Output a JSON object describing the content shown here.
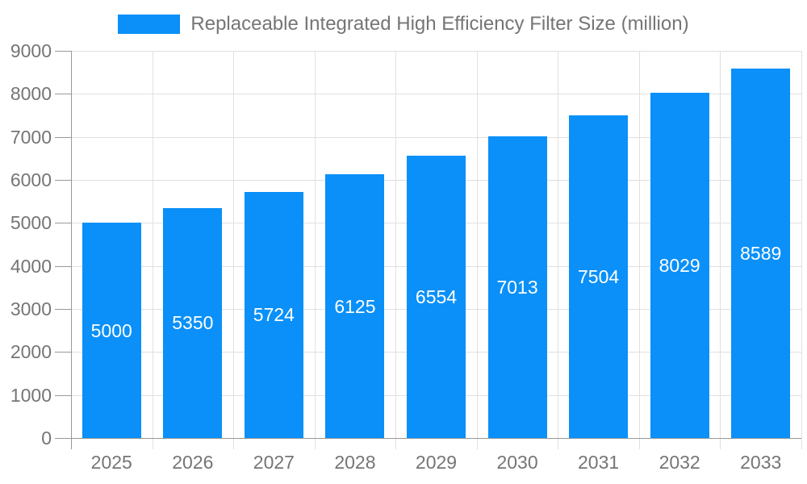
{
  "legend": {
    "label": "Replaceable Integrated High Efficiency Filter Size (million)"
  },
  "chart_data": {
    "type": "bar",
    "title": "Replaceable Integrated High Efficiency Filter Size (million)",
    "categories": [
      "2025",
      "2026",
      "2027",
      "2028",
      "2029",
      "2030",
      "2031",
      "2032",
      "2033"
    ],
    "values": [
      5000,
      5350,
      5724,
      6125,
      6554,
      7013,
      7504,
      8029,
      8589
    ],
    "xlabel": "",
    "ylabel": "",
    "ylim": [
      0,
      9000
    ],
    "yticks": [
      0,
      1000,
      2000,
      3000,
      4000,
      5000,
      6000,
      7000,
      8000,
      9000
    ],
    "grid": true,
    "legend_position": "top-center",
    "value_labels": "inside-middle",
    "colors": {
      "bar": "#0a90f8",
      "grid_line": "#e0e0e0",
      "axis_line": "#999999",
      "tick": "#999999",
      "axis_text": "#757575",
      "value_text": "#ffffff",
      "background": "#ffffff"
    }
  }
}
